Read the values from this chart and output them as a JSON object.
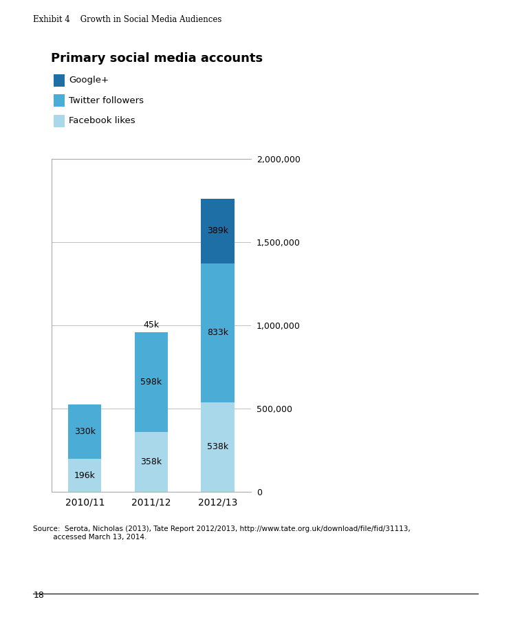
{
  "title": "Primary social media accounts",
  "exhibit_label": "Exhibit 4    Growth in Social Media Audiences",
  "categories": [
    "2010/11",
    "2011/12",
    "2012/13"
  ],
  "google_plus": [
    0,
    0,
    389000
  ],
  "twitter": [
    330000,
    598000,
    833000
  ],
  "facebook": [
    196000,
    358000,
    538000
  ],
  "twitter_top_labels": [
    "",
    "45k",
    ""
  ],
  "twitter_inside_labels": [
    "330k",
    "598k",
    "833k"
  ],
  "facebook_inside_labels": [
    "196k",
    "358k",
    "538k"
  ],
  "google_plus_inside_labels": [
    "",
    "",
    "389k"
  ],
  "colors": {
    "google_plus": "#1D6FA5",
    "twitter": "#4BADD6",
    "facebook": "#A8D8EA"
  },
  "ylim": [
    0,
    2000000
  ],
  "yticks": [
    0,
    500000,
    1000000,
    1500000,
    2000000
  ],
  "ytick_labels": [
    "0",
    "500,000",
    "1,000,000",
    "1,500,000",
    "2,000,000"
  ],
  "legend_labels": [
    "Google+",
    "Twitter followers",
    "Facebook likes"
  ],
  "source_line1": "Source:  Serota, Nicholas (2013), Tate Report 2012/2013, http://www.tate.org.uk/download/file/fid/31113,",
  "source_line2": "         accessed March 13, 2014.",
  "page_number": "18",
  "background_color": "#FFFFFF"
}
